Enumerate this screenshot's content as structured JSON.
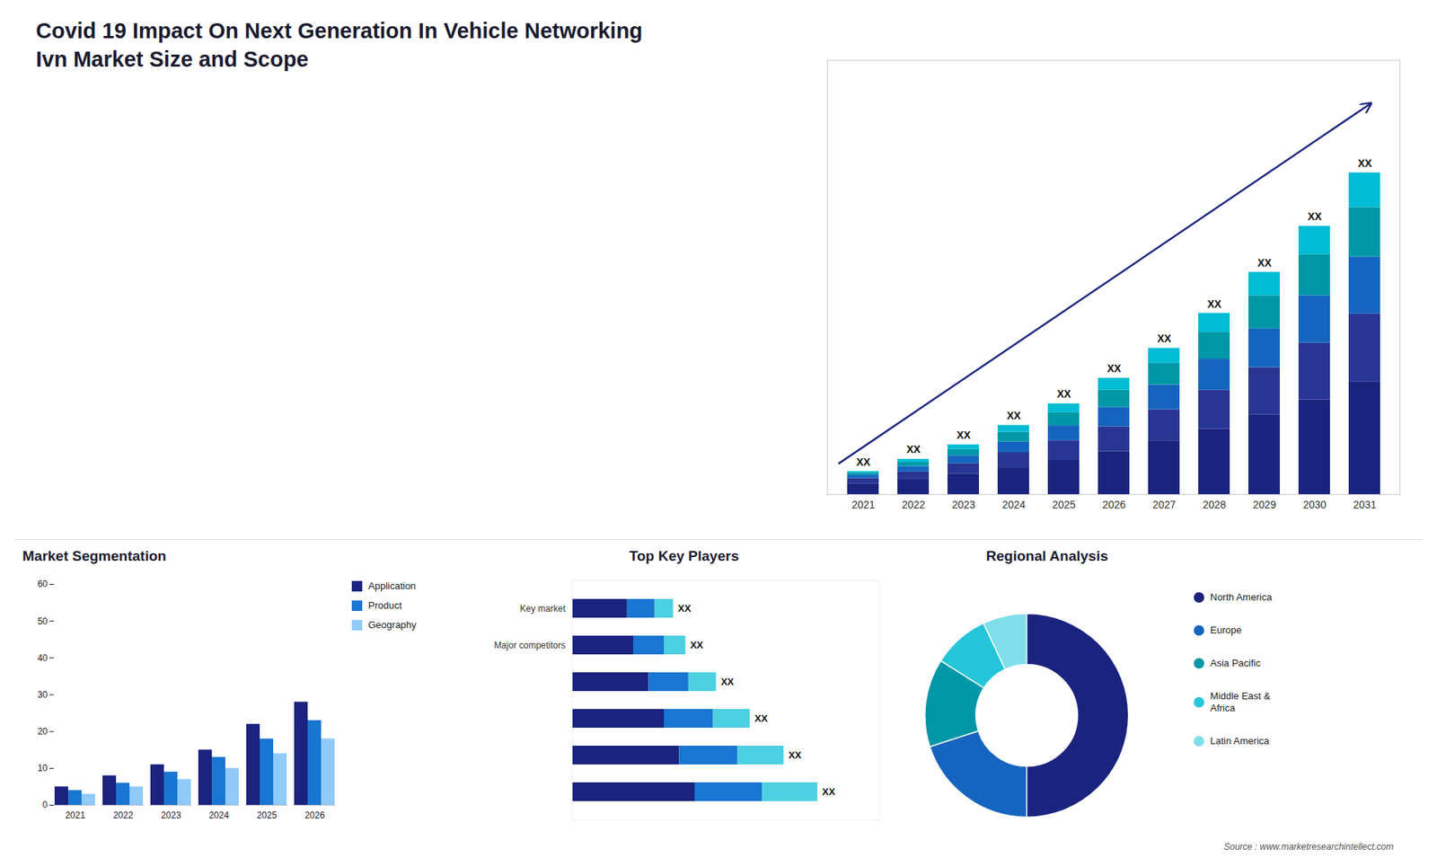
{
  "chart_data": [
    {
      "type": "bar",
      "title": "Covid 19 Impact On Next Generation In Vehicle Networking",
      "subtitle": "Ivn Market Size and Scope",
      "stacked": true,
      "categories": [
        "2021",
        "2022",
        "2023",
        "2024",
        "2025",
        "2026",
        "2027",
        "2028",
        "2029",
        "2030",
        "2031"
      ],
      "series": [
        {
          "color": "#1a237e",
          "values": [
            1.0,
            1.4,
            1.9,
            2.5,
            3.2,
            4.0,
            5.0,
            6.1,
            7.4,
            8.8,
            10.5
          ]
        },
        {
          "color": "#283593",
          "values": [
            0.5,
            0.7,
            1.0,
            1.4,
            1.8,
            2.3,
            2.9,
            3.6,
            4.4,
            5.3,
            6.3
          ]
        },
        {
          "color": "#1565c0",
          "values": [
            0.3,
            0.5,
            0.7,
            1.0,
            1.4,
            1.8,
            2.3,
            2.9,
            3.6,
            4.4,
            5.3
          ]
        },
        {
          "color": "#0097a7",
          "values": [
            0.2,
            0.4,
            0.6,
            0.9,
            1.2,
            1.6,
            2.0,
            2.5,
            3.1,
            3.8,
            4.6
          ]
        },
        {
          "color": "#00bcd4",
          "values": [
            0.14,
            0.28,
            0.42,
            0.63,
            0.84,
            1.12,
            1.4,
            1.75,
            2.17,
            2.66,
            3.22
          ]
        }
      ],
      "ylim": [
        0,
        40.392
      ],
      "tick_labels": "x",
      "data_labels": true,
      "value_labels": [
        "XX",
        "XX",
        "XX",
        "XX",
        "XX",
        "XX",
        "XX",
        "XX",
        "XX",
        "XX",
        "XX"
      ],
      "annotations": [
        {
          "type": "arrow",
          "color": "#1a237e"
        }
      ]
    },
    {
      "type": "bar",
      "title": "Market Segmentation",
      "categories": [
        "2021",
        "2022",
        "2023",
        "2024",
        "2025",
        "2026"
      ],
      "series": [
        {
          "name": "Application",
          "color": "#1a237e",
          "values": [
            5,
            8,
            11,
            15,
            22,
            28
          ]
        },
        {
          "name": "Product",
          "color": "#1976d2",
          "values": [
            4,
            6,
            9,
            13,
            18,
            23
          ]
        },
        {
          "name": "Geography",
          "color": "#90caf9",
          "values": [
            3,
            5,
            7,
            10,
            14,
            18
          ]
        }
      ],
      "ylim": [
        0,
        60
      ],
      "yticks": [
        0,
        10,
        20,
        30,
        40,
        50,
        60
      ],
      "legend": "right"
    },
    {
      "type": "bar",
      "title": "Top Key Players",
      "orientation": "horizontal",
      "stacked": true,
      "categories": [
        null,
        null,
        null,
        null,
        "Major competitors",
        "Key market"
      ],
      "series": [
        {
          "color": "#1a237e",
          "values": [
            4.0,
            3.5,
            3.0,
            2.5,
            2.0,
            1.8
          ]
        },
        {
          "color": "#1976d2",
          "values": [
            2.2,
            1.9,
            1.6,
            1.3,
            1.0,
            0.9
          ]
        },
        {
          "color": "#4dd0e1",
          "values": [
            1.8,
            1.5,
            1.2,
            0.9,
            0.7,
            0.6
          ]
        }
      ],
      "xlim": [
        0,
        10
      ],
      "tick_labels": "y",
      "data_labels": true,
      "value_labels": [
        "XX",
        "XX",
        "XX",
        "XX",
        "XX",
        "XX"
      ]
    },
    {
      "type": "pie",
      "title": "Regional Analysis",
      "categories": [
        "Latin America",
        "Middle East &\nAfrica",
        "Asia Pacific",
        "Europe",
        "North America"
      ],
      "values": [
        7,
        9,
        14,
        20,
        50
      ],
      "colors": [
        "#80deea",
        "#26c6da",
        "#0097a7",
        "#1565c0",
        "#1a237e"
      ],
      "legend": "right",
      "annotations": [
        {
          "text": "Source : www.marketresearchintellect.com"
        }
      ]
    }
  ]
}
